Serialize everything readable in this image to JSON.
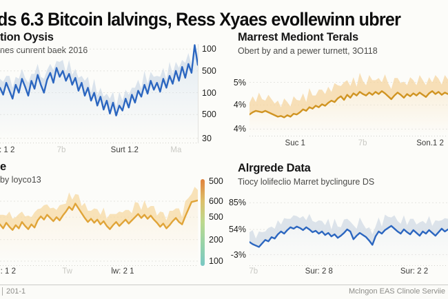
{
  "page": {
    "title": "ds 6.3 Bitcoin lalvings, Ress Xyaes evollewinn ubrer",
    "footer": {
      "left_label": "201-1",
      "right_label": "Mclngon EAS Clinole Serviie"
    }
  },
  "chart_data": [
    {
      "type": "line",
      "title": "tion Oysis",
      "subtitle": "nes cunrent baek 2016",
      "y_side": "right",
      "y_ticks": [
        {
          "label": "100",
          "pos": 0.05
        },
        {
          "label": "500",
          "pos": 0.27
        },
        {
          "label": "100",
          "pos": 0.49
        },
        {
          "label": "500",
          "pos": 0.71
        },
        {
          "label": "30",
          "pos": 0.95
        }
      ],
      "x_ticks": [
        {
          "label": "t: 1 2",
          "pos": 0.03,
          "faint": false
        },
        {
          "label": "7b",
          "pos": 0.31,
          "faint": true
        },
        {
          "label": "Surt 1.2",
          "pos": 0.63,
          "faint": false
        },
        {
          "label": "Ma",
          "pos": 0.89,
          "faint": true
        }
      ],
      "series": [
        {
          "name": "blue-line",
          "values": [
            56,
            49,
            61,
            53,
            45,
            59,
            51,
            65,
            57,
            48,
            63,
            55,
            69,
            59,
            51,
            64,
            71,
            61,
            76,
            67,
            73,
            63,
            70,
            59,
            66,
            53,
            61,
            48,
            56,
            43,
            51,
            38,
            47,
            34,
            43,
            30,
            41,
            28,
            38,
            33,
            45,
            36,
            49,
            41,
            53,
            47,
            59,
            50,
            63,
            54,
            61,
            52,
            65,
            56,
            68,
            60,
            73,
            63,
            77,
            66,
            80,
            71,
            99,
            79
          ]
        }
      ],
      "band_offsets": [
        9,
        13,
        7,
        15,
        11,
        8,
        14,
        10
      ],
      "colors": {
        "line": "#2b66c0",
        "band": "rgba(190,206,226,0.55)",
        "under": "rgba(214,226,238,0.7)"
      }
    },
    {
      "type": "line",
      "title": "Marrest Mediont Terals",
      "subtitle": "Obert by and a pewer turnett, 3O118",
      "y_side": "left",
      "y_ticks": [
        {
          "label": "5%",
          "pos": 0.26
        },
        {
          "label": "4%",
          "pos": 0.57
        },
        {
          "label": "4%",
          "pos": 0.9
        }
      ],
      "x_ticks": [
        {
          "label": "Suc 1",
          "pos": 0.23,
          "faint": false
        },
        {
          "label": "7b",
          "pos": 0.57,
          "faint": true
        },
        {
          "label": "Son.1 2",
          "pos": 0.91,
          "faint": false
        }
      ],
      "series": [
        {
          "name": "orange-line",
          "values": [
            30,
            33,
            35,
            34,
            33,
            35,
            33,
            31,
            29,
            27,
            28,
            26,
            29,
            27,
            31,
            30,
            33,
            37,
            35,
            40,
            38,
            42,
            40,
            44,
            42,
            46,
            49,
            47,
            52,
            55,
            50,
            57,
            53,
            59,
            56,
            61,
            58,
            56,
            60,
            57,
            61,
            58,
            62,
            59,
            55,
            51,
            56,
            60,
            57,
            53,
            58,
            55,
            59,
            56,
            60,
            57,
            54,
            59,
            62,
            58,
            61,
            57,
            60,
            58
          ]
        }
      ],
      "band_offsets": [
        16,
        22,
        12,
        26,
        18,
        14,
        24,
        20
      ],
      "colors": {
        "line": "#d09422",
        "band": "rgba(245,214,160,0.75)",
        "under": "rgba(249,233,204,0.6)"
      }
    },
    {
      "type": "line",
      "title": "e",
      "subtitle": "by loyco13",
      "y_side": "right",
      "y_ticks": [
        {
          "label": "500",
          "pos": -0.06
        },
        {
          "label": "600",
          "pos": 0.19
        },
        {
          "label": "500",
          "pos": 0.39
        },
        {
          "label": "200",
          "pos": 0.67
        },
        {
          "label": "100",
          "pos": 0.94
        }
      ],
      "x_ticks": [
        {
          "label": "u: 1 2",
          "pos": 0.03,
          "faint": false
        },
        {
          "label": "Tw",
          "pos": 0.34,
          "faint": true
        },
        {
          "label": "lw: 2 1",
          "pos": 0.62,
          "faint": false
        }
      ],
      "series": [
        {
          "name": "orange-line",
          "values": [
            52,
            47,
            54,
            49,
            45,
            51,
            47,
            55,
            50,
            46,
            52,
            48,
            57,
            62,
            58,
            64,
            60,
            56,
            61,
            57,
            63,
            68,
            74,
            70,
            78,
            72,
            66,
            60,
            55,
            59,
            54,
            58,
            52,
            56,
            50,
            46,
            51,
            55,
            50,
            54,
            58,
            53,
            57,
            61,
            65,
            60,
            64,
            59,
            63,
            58,
            54,
            49,
            53,
            47,
            51,
            56,
            60,
            55,
            52,
            62,
            71,
            80,
            81,
            82
          ]
        }
      ],
      "band_offsets": [
        12,
        17,
        9,
        19,
        14,
        10,
        18,
        13
      ],
      "colors": {
        "line": "#e0a438",
        "band": "rgba(246,219,168,0.8)",
        "under": "rgba(250,237,214,0.6)"
      },
      "scale_bar": {
        "colors": [
          "#e0813a",
          "#ddc06a",
          "#bcd98e",
          "#97d3a8",
          "#79c8c4"
        ]
      }
    },
    {
      "type": "line",
      "title": "Alrgrede Data",
      "subtitle": "Tiocy lolifeclio Marret byclingure DS",
      "y_side": "left",
      "y_ticks": [
        {
          "label": "85%",
          "pos": 0.1
        },
        {
          "label": "54%",
          "pos": 0.48
        },
        {
          "label": "-3%",
          "pos": 0.84
        }
      ],
      "x_ticks": [
        {
          "label": "7b",
          "pos": 0.02,
          "faint": true
        },
        {
          "label": "Sur: 2 8",
          "pos": 0.35,
          "faint": false
        },
        {
          "label": "Sur: 2 2",
          "pos": 0.83,
          "faint": false
        }
      ],
      "series": [
        {
          "name": "blue-line",
          "values": [
            34,
            31,
            29,
            27,
            32,
            37,
            35,
            41,
            39,
            45,
            49,
            46,
            51,
            55,
            53,
            56,
            54,
            51,
            55,
            52,
            48,
            50,
            46,
            49,
            44,
            47,
            42,
            45,
            40,
            43,
            47,
            52,
            49,
            38,
            43,
            47,
            44,
            41,
            36,
            30,
            42,
            49,
            46,
            51,
            54,
            57,
            53,
            49,
            46,
            52,
            48,
            45,
            51,
            47,
            43,
            49,
            46,
            51,
            47,
            43,
            48,
            53,
            49,
            52
          ]
        }
      ],
      "band_offsets": [
        14,
        20,
        10,
        22,
        16,
        12,
        19,
        15
      ],
      "colors": {
        "line": "#2b66c0",
        "band": "rgba(214,222,231,0.85)",
        "under": "rgba(233,238,243,0.5)"
      }
    }
  ]
}
